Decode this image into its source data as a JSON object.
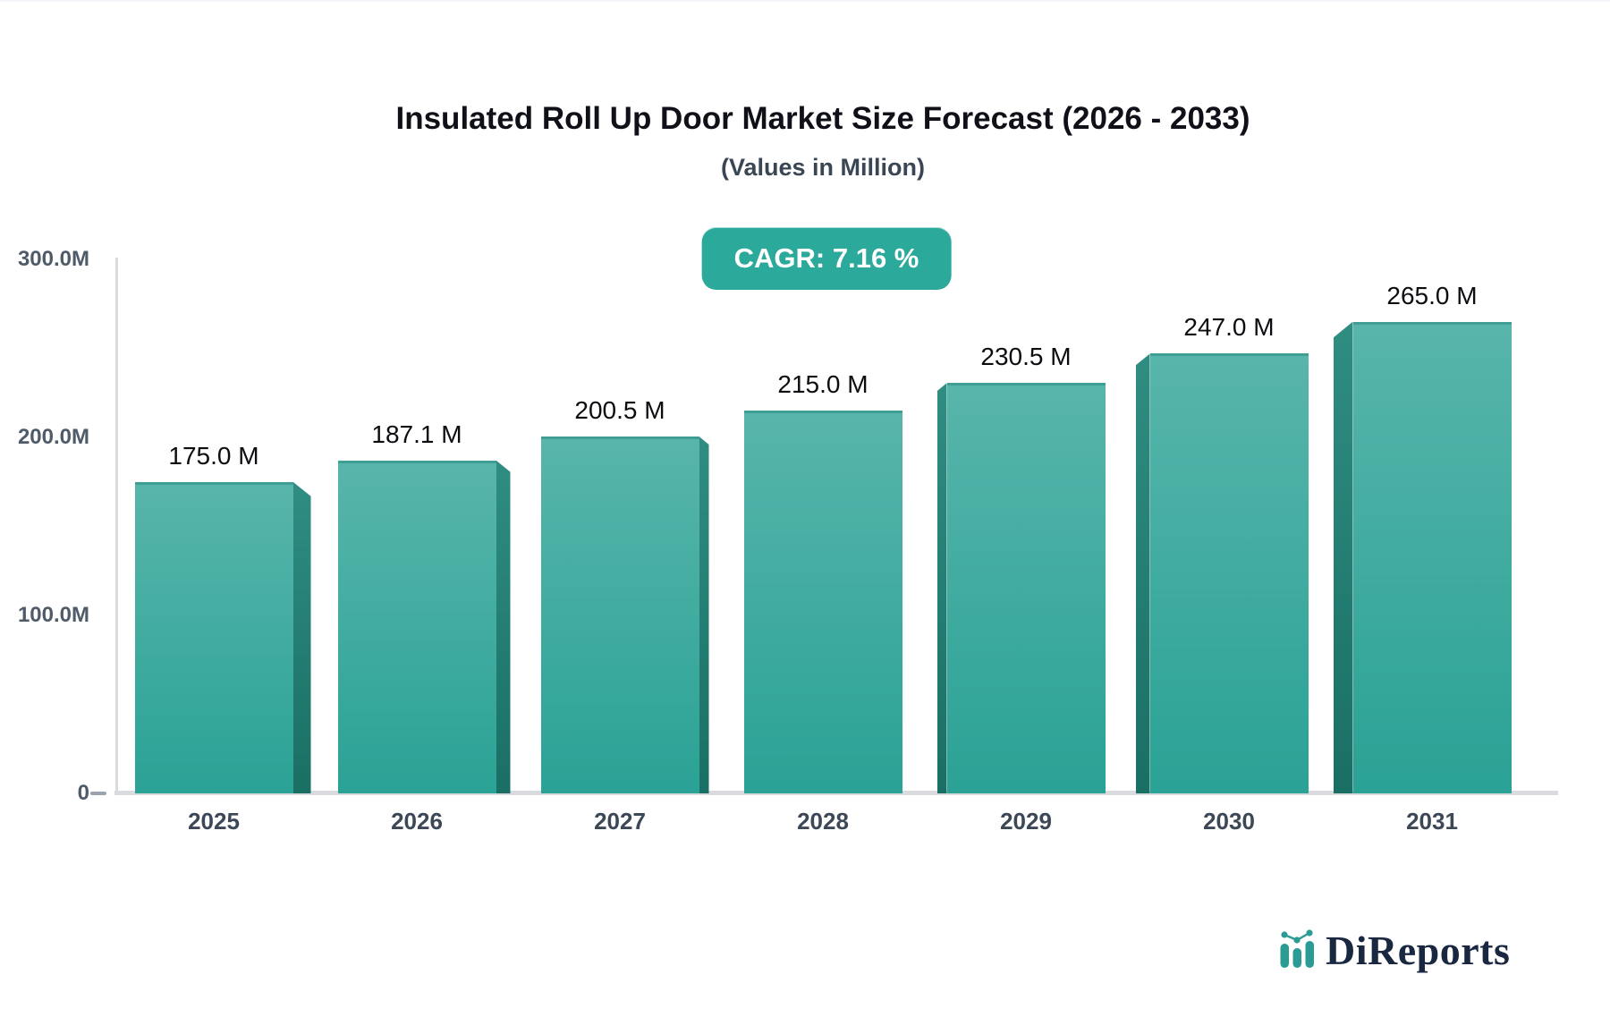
{
  "chart_data": {
    "type": "bar",
    "title": "Insulated Roll Up Door Market Size Forecast (2026 - 2033)",
    "subtitle": "(Values in Million)",
    "annotation": "CAGR: 7.16 %",
    "unit": "Million",
    "categories": [
      "2025",
      "2026",
      "2027",
      "2028",
      "2029",
      "2030",
      "2031"
    ],
    "values": [
      175.0,
      187.1,
      200.5,
      215.0,
      230.5,
      247.0,
      265.0
    ],
    "value_labels": [
      "175.0 M",
      "187.1 M",
      "200.5 M",
      "215.0 M",
      "230.5 M",
      "247.0 M",
      "265.0 M"
    ],
    "series_name": "Market Size",
    "yticks": {
      "labels": [
        "300.0M",
        "200.0M",
        "100.0M",
        "0"
      ],
      "values": [
        300,
        200,
        100,
        0
      ]
    },
    "ylim": [
      0,
      300
    ],
    "grid": false,
    "legend": false,
    "colors": {
      "bar_top": "#58b5ab",
      "bar_bottom": "#2aa295",
      "bar_side": "#1f786c",
      "accent": "#2ba99a",
      "axis": "#d9dbdf"
    }
  },
  "logo": {
    "text": "DiReports",
    "icon": "mini-bar-line-chart-icon",
    "navy": "#1a2740",
    "teal": "#2b9c93"
  }
}
